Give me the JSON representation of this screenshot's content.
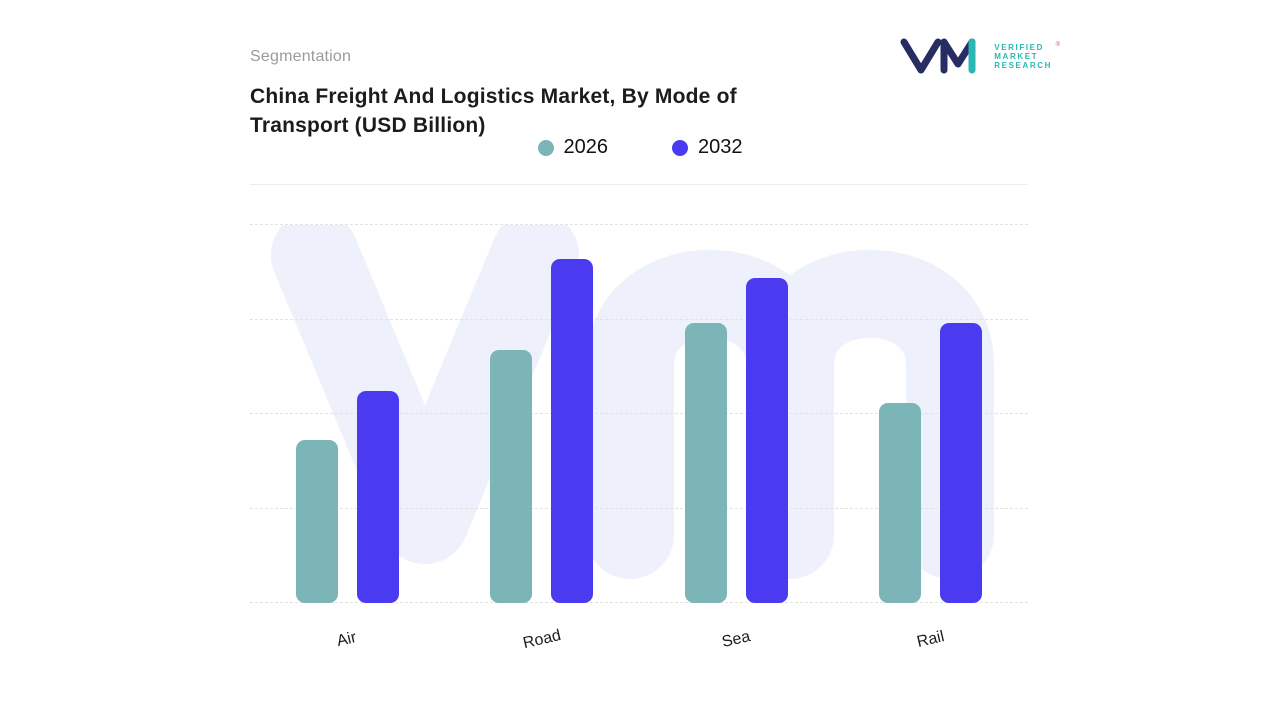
{
  "header": {
    "eyebrow": "Segmentation",
    "title": "China Freight And Logistics Market, By Mode of Transport (USD Billion)"
  },
  "logo": {
    "text_lines": [
      "VERIFIED",
      "MARKET",
      "RESEARCH"
    ],
    "registered_mark": "®",
    "colors": {
      "monogram": "#272c63",
      "accent": "#2cb7b4",
      "text": "#2cb7b4",
      "registered": "#e05a5a"
    }
  },
  "chart_data": {
    "type": "bar",
    "title": "China Freight And Logistics Market, By Mode of Transport (USD Billion)",
    "categories": [
      "Air",
      "Road",
      "Sea",
      "Rail"
    ],
    "series": [
      {
        "name": "2026",
        "color": "#7cb5b8",
        "values": [
          43,
          67,
          74,
          53
        ]
      },
      {
        "name": "2032",
        "color": "#4b3bf0",
        "values": [
          56,
          91,
          86,
          74
        ]
      }
    ],
    "xlabel": "",
    "ylabel": "",
    "ylim": [
      0,
      100
    ],
    "value_axis_labeled": false,
    "grid": "horizontal-dashed",
    "gridline_count": 5,
    "legend_position": "top-center",
    "watermark": "vm",
    "watermark_color": "#eef1fb"
  }
}
